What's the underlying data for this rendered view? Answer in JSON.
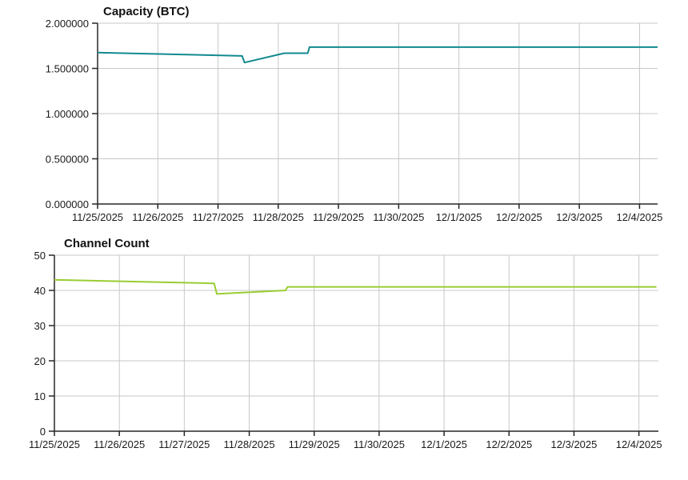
{
  "page": {
    "background": "#ffffff"
  },
  "chart_data": [
    {
      "type": "line",
      "title": "Capacity (BTC)",
      "xlabel": "",
      "ylabel": "",
      "x_unit": "days since 11/25/2025",
      "x_range": [
        0,
        9.3
      ],
      "x_tick_labels": [
        "11/25/2025",
        "11/26/2025",
        "11/27/2025",
        "11/28/2025",
        "11/29/2025",
        "11/30/2025",
        "12/1/2025",
        "12/2/2025",
        "12/3/2025",
        "12/4/2025"
      ],
      "ylim": [
        0,
        2
      ],
      "y_tick_values": [
        0,
        0.5,
        1,
        1.5,
        2
      ],
      "y_tick_labels": [
        "0.000000",
        "0.500000",
        "1.000000",
        "1.500000",
        "2.000000"
      ],
      "grid": true,
      "legend": "none",
      "series": [
        {
          "name": "Capacity (BTC)",
          "color": "#128a8f",
          "points": [
            [
              0,
              1.675
            ],
            [
              2.4,
              1.638
            ],
            [
              2.44,
              1.565
            ],
            [
              3.1,
              1.668
            ],
            [
              3.49,
              1.668
            ],
            [
              3.52,
              1.735
            ],
            [
              9.3,
              1.735
            ]
          ]
        }
      ],
      "style": {
        "grid_color": "#c8c8c8",
        "axis_color": "#262626",
        "text_color": "#1a1a1a"
      }
    },
    {
      "type": "line",
      "title": "Channel Count",
      "xlabel": "",
      "ylabel": "",
      "x_unit": "days since 11/25/2025",
      "x_range": [
        0,
        9.3
      ],
      "x_tick_labels": [
        "11/25/2025",
        "11/26/2025",
        "11/27/2025",
        "11/28/2025",
        "11/29/2025",
        "11/30/2025",
        "12/1/2025",
        "12/2/2025",
        "12/3/2025",
        "12/4/2025"
      ],
      "ylim": [
        0,
        50
      ],
      "y_tick_values": [
        0,
        10,
        20,
        30,
        40,
        50
      ],
      "y_tick_labels": [
        "0",
        "10",
        "20",
        "30",
        "40",
        "50"
      ],
      "grid": true,
      "legend": "none",
      "series": [
        {
          "name": "Channel Count",
          "color": "#9acd32",
          "points": [
            [
              0,
              43
            ],
            [
              2.46,
              42
            ],
            [
              2.5,
              39
            ],
            [
              3.56,
              40
            ],
            [
              3.59,
              41
            ],
            [
              9.27,
              41
            ]
          ]
        }
      ],
      "style": {
        "grid_color": "#c8c8c8",
        "axis_color": "#262626",
        "text_color": "#1a1a1a"
      }
    }
  ]
}
